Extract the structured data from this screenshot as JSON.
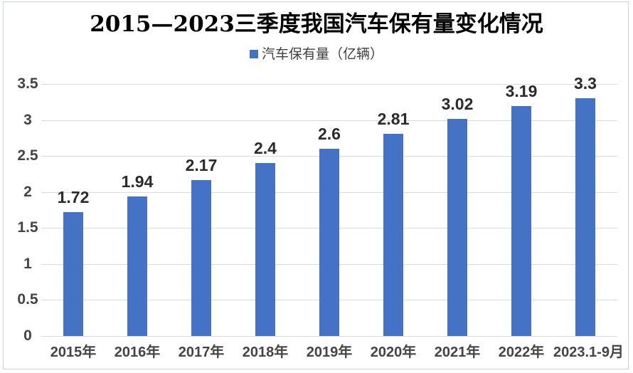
{
  "chart_data": {
    "type": "bar",
    "title": "2015—2023三季度我国汽车保有量变化情况",
    "legend": "汽车保有量（亿辆）",
    "legend_position": "top",
    "categories": [
      "2015年",
      "2016年",
      "2017年",
      "2018年",
      "2019年",
      "2020年",
      "2021年",
      "2022年",
      "2023.1-9月"
    ],
    "values": [
      1.72,
      1.94,
      2.17,
      2.4,
      2.6,
      2.81,
      3.02,
      3.19,
      3.3
    ],
    "value_labels": [
      "1.72",
      "1.94",
      "2.17",
      "2.4",
      "2.6",
      "2.81",
      "3.02",
      "3.19",
      "3.3"
    ],
    "xlabel": "",
    "ylabel": "",
    "ylim": [
      0,
      3.5
    ],
    "yticks": [
      0,
      0.5,
      1,
      1.5,
      2,
      2.5,
      3,
      3.5
    ],
    "ytick_labels": [
      "0",
      "0.5",
      "1",
      "1.5",
      "2",
      "2.5",
      "3",
      "3.5"
    ],
    "grid": true,
    "colors": {
      "bar": "#4472C4",
      "gridline": "#d9d9d9",
      "axis_text": "#444444",
      "value_label_text": "#2b2b2b",
      "title_text": "#000000",
      "legend_text": "#3f3f3f",
      "border": "#ccd1d9",
      "background": "#ffffff"
    }
  }
}
